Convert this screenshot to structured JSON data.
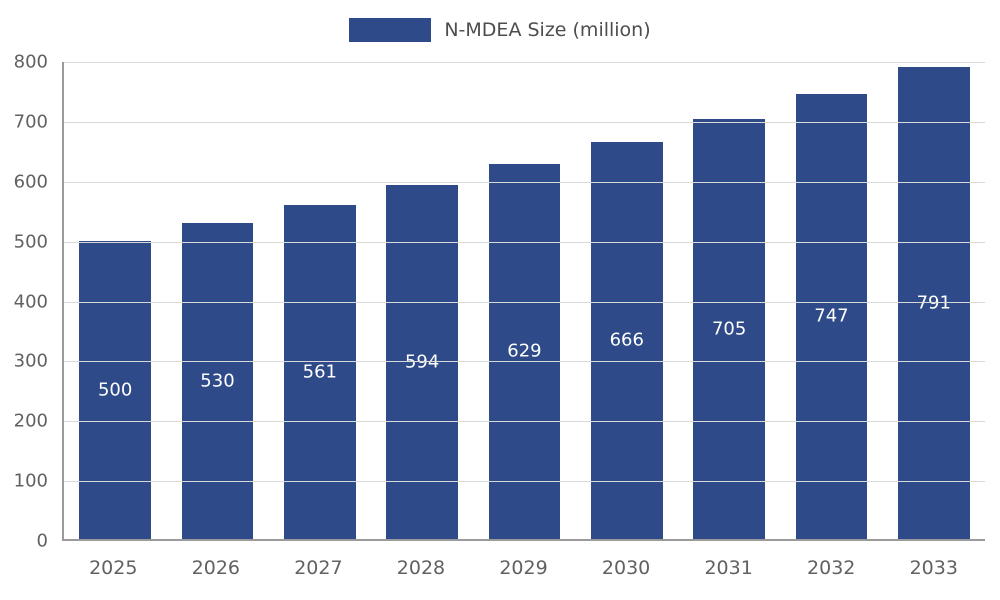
{
  "chart_data": {
    "type": "bar",
    "title": "N-MDEA Size (million)",
    "categories": [
      "2025",
      "2026",
      "2027",
      "2028",
      "2029",
      "2030",
      "2031",
      "2032",
      "2033"
    ],
    "values": [
      500,
      530,
      561,
      594,
      629,
      666,
      705,
      747,
      791
    ],
    "xlabel": "",
    "ylabel": "",
    "ylim": [
      0,
      800
    ],
    "ytick_step": 100,
    "grid": true,
    "legend_position": "top",
    "bar_color": "#2e4a88",
    "bar_label_color": "#ffffff",
    "axis_text_color": "#616161",
    "gridline_color": "#d9d9d9"
  },
  "legend": {
    "label": "N-MDEA Size (million)"
  }
}
